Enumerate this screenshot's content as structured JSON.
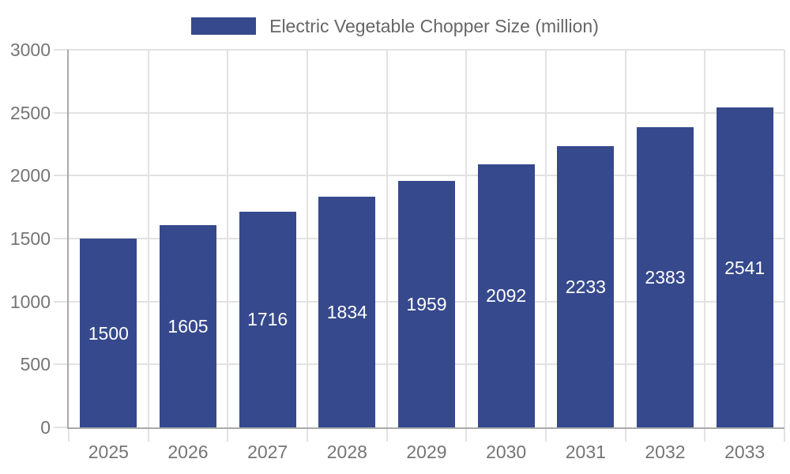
{
  "chart_data": {
    "type": "bar",
    "categories": [
      "2025",
      "2026",
      "2027",
      "2028",
      "2029",
      "2030",
      "2031",
      "2032",
      "2033"
    ],
    "values": [
      1500,
      1605,
      1716,
      1834,
      1959,
      2092,
      2233,
      2383,
      2541
    ],
    "series_name": "Electric Vegetable Chopper Size (million)",
    "title": "",
    "xlabel": "",
    "ylabel": "",
    "ylim": [
      0,
      3000
    ],
    "yticks": [
      0,
      500,
      1000,
      1500,
      2000,
      2500,
      3000
    ],
    "grid": true,
    "legend_position": "top",
    "bar_labels_inside": true,
    "colors": {
      "bar": "#36498D",
      "bar_label": "#FFFFFF",
      "axis_line": "#AAAAAA",
      "gridline": "#E2E2E2",
      "tick": "#E2E2E2",
      "axis_text": "#757575",
      "legend_text": "#666666"
    }
  }
}
